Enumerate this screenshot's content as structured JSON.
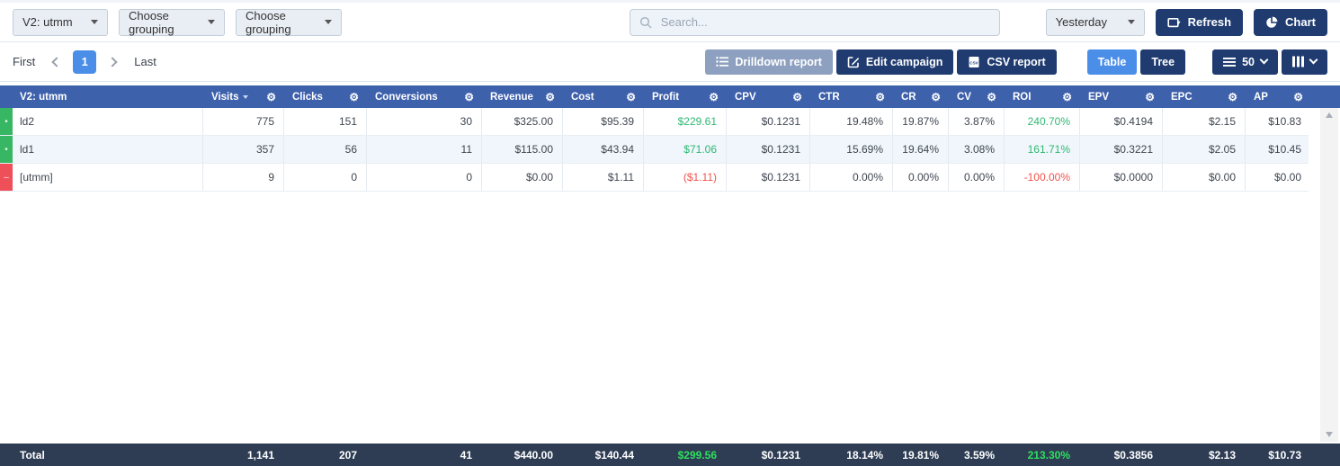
{
  "colors": {
    "header_bg": "#3e61ac",
    "navy": "#1f3b70",
    "active_blue": "#4a8ee8",
    "green": "#2eb873",
    "red": "#f0534d",
    "total_bg": "#2e3d54",
    "total_green": "#2ce05e",
    "alt_row": "#f0f6fb",
    "indicator_green": "#37b763",
    "indicator_red": "#ee4f58",
    "disabled_button": "#8da0bf",
    "control_bg": "#e9eef5",
    "control_border": "#c3cedb"
  },
  "icons": {
    "gear_glyph": "⚙",
    "status_glyphs": {
      "green": "•",
      "red": "–"
    },
    "names": [
      "search-icon",
      "refresh-icon",
      "pie-chart-icon",
      "list-icon",
      "edit-icon",
      "csv-file-icon",
      "hamburger-icon",
      "columns-icon",
      "gear-icon",
      "caret-down-icon",
      "chevron-left-icon",
      "chevron-right-icon"
    ]
  },
  "toolbar": {
    "grouping_selects": [
      {
        "value": "V2: utmm"
      },
      {
        "value": "Choose grouping"
      },
      {
        "value": "Choose grouping"
      }
    ],
    "search_placeholder": "Search...",
    "date_range": "Yesterday",
    "refresh_label": "Refresh",
    "chart_label": "Chart"
  },
  "pagination": {
    "first_label": "First",
    "current_page": "1",
    "last_label": "Last"
  },
  "actions": {
    "drilldown_label": "Drilldown report",
    "edit_campaign_label": "Edit campaign",
    "csv_label": "CSV report",
    "table_label": "Table",
    "tree_label": "Tree",
    "page_size": "50"
  },
  "table": {
    "name_column": {
      "label": "V2: utmm"
    },
    "metric_columns": [
      {
        "label": "Visits",
        "sorted": "desc"
      },
      {
        "label": "Clicks"
      },
      {
        "label": "Conversions"
      },
      {
        "label": "Revenue"
      },
      {
        "label": "Cost"
      },
      {
        "label": "Profit"
      },
      {
        "label": "CPV"
      },
      {
        "label": "CTR"
      },
      {
        "label": "CR"
      },
      {
        "label": "CV"
      },
      {
        "label": "ROI"
      },
      {
        "label": "EPV"
      },
      {
        "label": "EPC"
      },
      {
        "label": "AP"
      }
    ],
    "rows": [
      {
        "status": "green",
        "name": "ld2",
        "values": [
          "775",
          "151",
          "30",
          "$325.00",
          "$95.39",
          "$229.61",
          "$0.1231",
          "19.48%",
          "19.87%",
          "3.87%",
          "240.70%",
          "$0.4194",
          "$2.15",
          "$10.83"
        ],
        "value_colors": {
          "5": "green",
          "10": "green"
        }
      },
      {
        "status": "green",
        "name": "ld1",
        "values": [
          "357",
          "56",
          "11",
          "$115.00",
          "$43.94",
          "$71.06",
          "$0.1231",
          "15.69%",
          "19.64%",
          "3.08%",
          "161.71%",
          "$0.3221",
          "$2.05",
          "$10.45"
        ],
        "value_colors": {
          "5": "green",
          "10": "green"
        }
      },
      {
        "status": "red",
        "name": "[utmm]",
        "values": [
          "9",
          "0",
          "0",
          "$0.00",
          "$1.11",
          "($1.11)",
          "$0.1231",
          "0.00%",
          "0.00%",
          "0.00%",
          "-100.00%",
          "$0.0000",
          "$0.00",
          "$0.00"
        ],
        "value_colors": {
          "5": "red",
          "10": "red"
        }
      }
    ],
    "total": {
      "label": "Total",
      "values": [
        "1,141",
        "207",
        "41",
        "$440.00",
        "$140.44",
        "$299.56",
        "$0.1231",
        "18.14%",
        "19.81%",
        "3.59%",
        "213.30%",
        "$0.3856",
        "$2.13",
        "$10.73"
      ],
      "value_colors": {
        "5": "total-green",
        "10": "total-green"
      }
    }
  }
}
